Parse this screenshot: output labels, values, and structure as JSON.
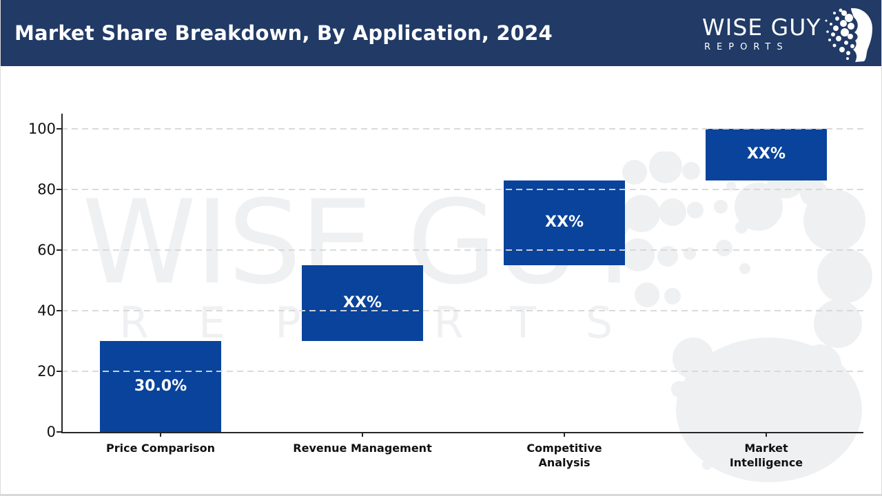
{
  "header": {
    "title": "Market Share Breakdown, By Application, 2024",
    "logo": {
      "brand_top": "WISE GUY",
      "brand_bottom": "REPORTS"
    }
  },
  "watermark": {
    "brand_top": "WISE GUY",
    "brand_bottom": "REPORTS"
  },
  "chart_data": {
    "type": "bar",
    "subtype": "waterfall",
    "title": "Market Share Breakdown, By Application, 2024",
    "categories": [
      "Price Comparison",
      "Revenue Management",
      "Competitive Analysis",
      "Market Intelligence"
    ],
    "bars": [
      {
        "category": "Price Comparison",
        "label_lines": [
          "Price Comparison"
        ],
        "start": 0,
        "end": 30,
        "value": 30,
        "value_label": "30.0%"
      },
      {
        "category": "Revenue Management",
        "label_lines": [
          "Revenue Management"
        ],
        "start": 30,
        "end": 55,
        "value": 25,
        "value_label": "XX%"
      },
      {
        "category": "Competitive Analysis",
        "label_lines": [
          "Competitive",
          "Analysis"
        ],
        "start": 55,
        "end": 83,
        "value": 28,
        "value_label": "XX%"
      },
      {
        "category": "Market Intelligence",
        "label_lines": [
          "Market",
          "Intelligence"
        ],
        "start": 83,
        "end": 100,
        "value": 17,
        "value_label": "XX%"
      }
    ],
    "yticks": [
      0,
      20,
      40,
      60,
      80,
      100
    ],
    "ylim": [
      0,
      105
    ],
    "grid": {
      "axis": "y",
      "style": "dashed",
      "color": "#d8d8d8",
      "on_top_of_bars": true
    },
    "legend": "none",
    "bar_color": "#09439b",
    "bar_label_color": "#ffffff",
    "axis_color": "#262626"
  },
  "colors": {
    "header_bg": "#213a66",
    "bar_blue": "#09439b",
    "watermark_gray": "#eff0f2",
    "grid_gray": "#d8d8d8"
  }
}
